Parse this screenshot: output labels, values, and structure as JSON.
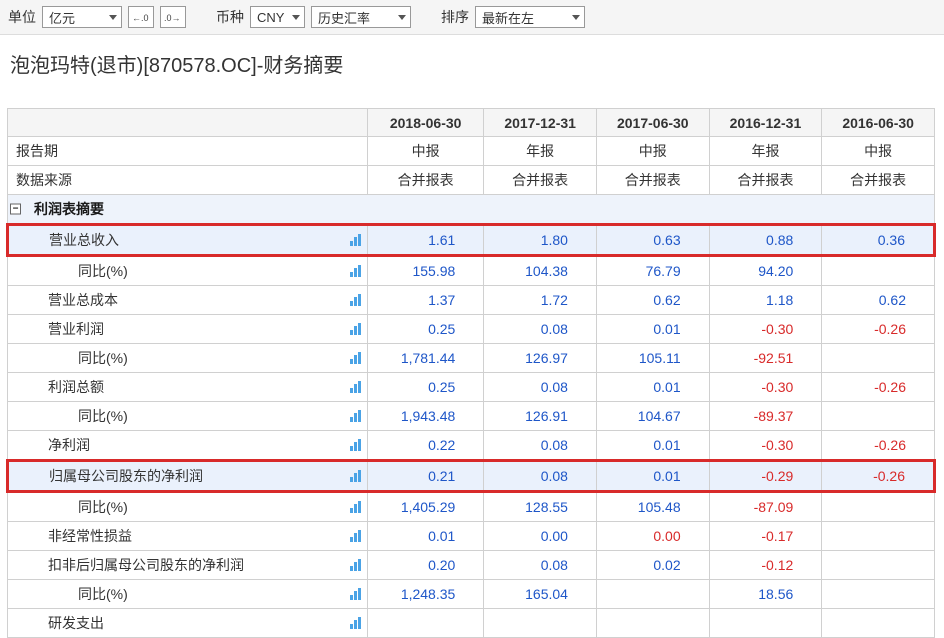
{
  "toolbar": {
    "unit_label": "单位",
    "unit_value": "亿元",
    "dec_less": "←.00",
    "dec_more": ".00→",
    "currency_label": "币种",
    "currency_value": "CNY",
    "rate_value": "历史汇率",
    "sort_label": "排序",
    "sort_value": "最新在左"
  },
  "title": "泡泡玛特(退市)[870578.OC]-财务摘要",
  "columns": [
    "2018-06-30",
    "2017-12-31",
    "2017-06-30",
    "2016-12-31",
    "2016-06-30"
  ],
  "row_report_period": {
    "label": "报告期",
    "cells": [
      "中报",
      "年报",
      "中报",
      "年报",
      "中报"
    ]
  },
  "row_data_source": {
    "label": "数据来源",
    "cells": [
      "合并报表",
      "合并报表",
      "合并报表",
      "合并报表",
      "合并报表"
    ]
  },
  "section1": "利润表摘要",
  "rows": [
    {
      "label": "营业总收入",
      "chart": true,
      "highlight": true,
      "box": "top",
      "indent": 1,
      "cells": [
        {
          "v": "1.61"
        },
        {
          "v": "1.80"
        },
        {
          "v": "0.63"
        },
        {
          "v": "0.88"
        },
        {
          "v": "0.36"
        }
      ]
    },
    {
      "label": "同比(%)",
      "chart": true,
      "indent": 2,
      "cells": [
        {
          "v": "155.98"
        },
        {
          "v": "104.38"
        },
        {
          "v": "76.79"
        },
        {
          "v": "94.20"
        },
        {
          "v": ""
        }
      ]
    },
    {
      "label": "营业总成本",
      "chart": true,
      "indent": 1,
      "cells": [
        {
          "v": "1.37"
        },
        {
          "v": "1.72"
        },
        {
          "v": "0.62"
        },
        {
          "v": "1.18"
        },
        {
          "v": "0.62"
        }
      ]
    },
    {
      "label": "营业利润",
      "chart": true,
      "indent": 1,
      "cells": [
        {
          "v": "0.25"
        },
        {
          "v": "0.08"
        },
        {
          "v": "0.01"
        },
        {
          "v": "-0.30",
          "neg": true
        },
        {
          "v": "-0.26",
          "neg": true
        }
      ]
    },
    {
      "label": "同比(%)",
      "chart": true,
      "indent": 2,
      "cells": [
        {
          "v": "1,781.44"
        },
        {
          "v": "126.97"
        },
        {
          "v": "105.11"
        },
        {
          "v": "-92.51",
          "neg": true
        },
        {
          "v": ""
        }
      ]
    },
    {
      "label": "利润总额",
      "chart": true,
      "indent": 1,
      "cells": [
        {
          "v": "0.25"
        },
        {
          "v": "0.08"
        },
        {
          "v": "0.01"
        },
        {
          "v": "-0.30",
          "neg": true
        },
        {
          "v": "-0.26",
          "neg": true
        }
      ]
    },
    {
      "label": "同比(%)",
      "chart": true,
      "indent": 2,
      "cells": [
        {
          "v": "1,943.48"
        },
        {
          "v": "126.91"
        },
        {
          "v": "104.67"
        },
        {
          "v": "-89.37",
          "neg": true
        },
        {
          "v": ""
        }
      ]
    },
    {
      "label": "净利润",
      "chart": true,
      "indent": 1,
      "cells": [
        {
          "v": "0.22"
        },
        {
          "v": "0.08"
        },
        {
          "v": "0.01"
        },
        {
          "v": "-0.30",
          "neg": true
        },
        {
          "v": "-0.26",
          "neg": true
        }
      ]
    },
    {
      "label": "归属母公司股东的净利润",
      "chart": true,
      "highlight": true,
      "box": "bot",
      "indent": 1,
      "cells": [
        {
          "v": "0.21"
        },
        {
          "v": "0.08"
        },
        {
          "v": "0.01"
        },
        {
          "v": "-0.29",
          "neg": true
        },
        {
          "v": "-0.26",
          "neg": true
        }
      ]
    },
    {
      "label": "同比(%)",
      "chart": true,
      "indent": 2,
      "cells": [
        {
          "v": "1,405.29"
        },
        {
          "v": "128.55"
        },
        {
          "v": "105.48"
        },
        {
          "v": "-87.09",
          "neg": true
        },
        {
          "v": ""
        }
      ]
    },
    {
      "label": "非经常性损益",
      "chart": true,
      "indent": 1,
      "cells": [
        {
          "v": "0.01"
        },
        {
          "v": "0.00"
        },
        {
          "v": "0.00",
          "neg": true
        },
        {
          "v": "-0.17",
          "neg": true
        },
        {
          "v": ""
        }
      ]
    },
    {
      "label": "扣非后归属母公司股东的净利润",
      "chart": true,
      "indent": 1,
      "cells": [
        {
          "v": "0.20"
        },
        {
          "v": "0.08"
        },
        {
          "v": "0.02"
        },
        {
          "v": "-0.12",
          "neg": true
        },
        {
          "v": ""
        }
      ]
    },
    {
      "label": "同比(%)",
      "chart": true,
      "indent": 2,
      "cells": [
        {
          "v": "1,248.35"
        },
        {
          "v": "165.04"
        },
        {
          "v": ""
        },
        {
          "v": "18.56"
        },
        {
          "v": ""
        }
      ]
    },
    {
      "label": "研发支出",
      "chart": true,
      "indent": 1,
      "cells": [
        {
          "v": ""
        },
        {
          "v": ""
        },
        {
          "v": ""
        },
        {
          "v": ""
        },
        {
          "v": ""
        }
      ]
    }
  ]
}
